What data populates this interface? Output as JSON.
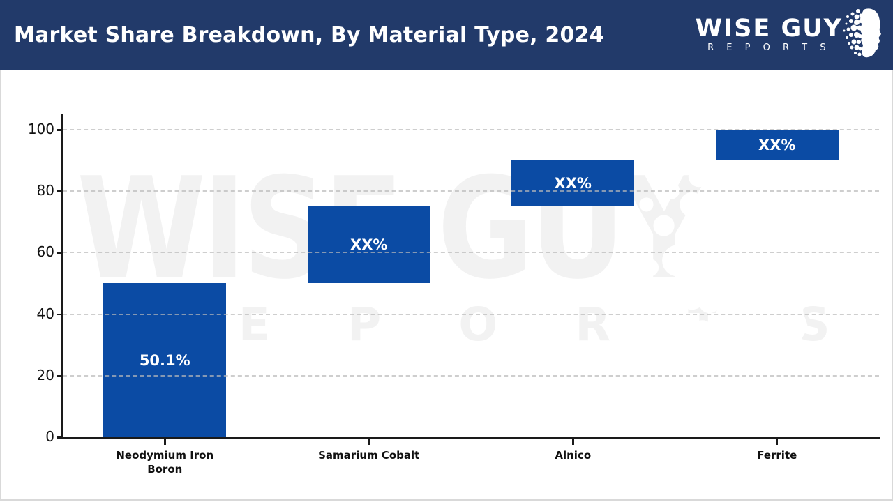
{
  "header": {
    "title": "Market Share Breakdown, By Material Type, 2024",
    "bg_color": "#223a6a",
    "logo": {
      "line1": "WISE GUY",
      "line2": "R E P O R T S"
    }
  },
  "watermark": {
    "line1": "WISE GUY",
    "line2": "R E P O R T S"
  },
  "chart_data": {
    "type": "bar",
    "variant": "floating-waterfall",
    "title": "Market Share Breakdown, By Material Type, 2024",
    "categories": [
      "Neodymium Iron Boron",
      "Samarium Cobalt",
      "Alnico",
      "Ferrite"
    ],
    "segments": [
      {
        "category": "Neodymium Iron Boron",
        "start": 0,
        "end": 50.1,
        "label": "50.1%"
      },
      {
        "category": "Samarium Cobalt",
        "start": 50.1,
        "end": 75,
        "label": "XX%"
      },
      {
        "category": "Alnico",
        "start": 75,
        "end": 90,
        "label": "XX%"
      },
      {
        "category": "Ferrite",
        "start": 90,
        "end": 100,
        "label": "XX%"
      }
    ],
    "ylim": [
      0,
      100
    ],
    "yticks": [
      0,
      20,
      40,
      60,
      80,
      100
    ],
    "xlabel": "",
    "ylabel": "",
    "grid": "horizontal-dashed",
    "legend": "none",
    "bar_color": "#0b4ba4",
    "bar_label_color": "#ffffff",
    "axis_color": "#1a1a1a",
    "gridline_color": "#d9d9d9"
  }
}
